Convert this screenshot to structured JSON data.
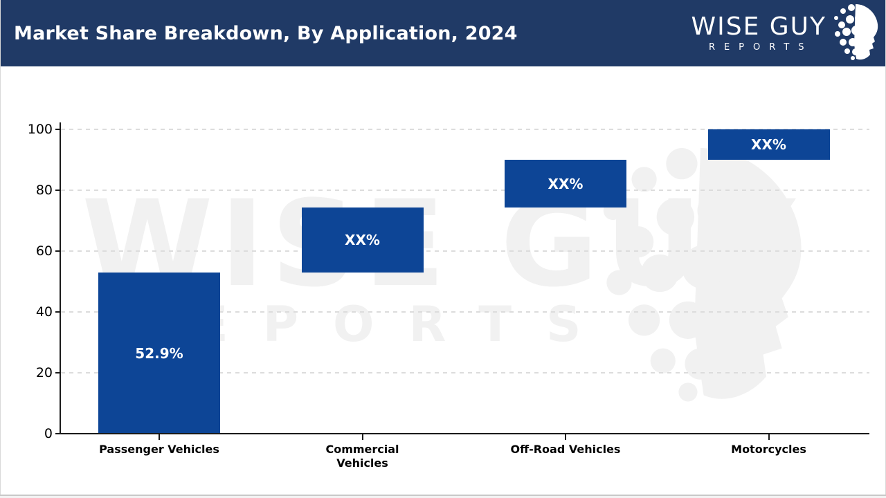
{
  "header": {
    "title": "Market Share Breakdown, By Application, 2024",
    "logo": {
      "line1": "WISE GUY",
      "line2": "REPORTS"
    }
  },
  "watermark": {
    "line1": "WISE GUY",
    "line2": "REPORTS"
  },
  "colors": {
    "header_bg": "#203a66",
    "bar": "#0d4596",
    "grid": "#dcdcdc",
    "axis": "#1a1a1a",
    "bar_label": "#ffffff",
    "watermark": "#f1f1f1"
  },
  "chart_data": {
    "type": "bar",
    "subtype": "waterfall",
    "title": "Market Share Breakdown, By Application, 2024",
    "xlabel": "",
    "ylabel": "",
    "ylim": [
      0,
      102
    ],
    "grid": "dashed horizontal",
    "legend": "none",
    "categories": [
      {
        "lines": [
          "Passenger Vehicles"
        ]
      },
      {
        "lines": [
          "Commercial",
          "Vehicles"
        ]
      },
      {
        "lines": [
          "Off-Road Vehicles"
        ]
      },
      {
        "lines": [
          "Motorcycles"
        ]
      }
    ],
    "yticks": [
      0,
      20,
      40,
      60,
      80,
      100
    ],
    "segments": [
      {
        "category": "Passenger Vehicles",
        "start": 0,
        "end": 52.9,
        "label": "52.9%"
      },
      {
        "category": "Commercial Vehicles",
        "start": 52.9,
        "end": 74.3,
        "label": "XX%"
      },
      {
        "category": "Off-Road Vehicles",
        "start": 74.3,
        "end": 90.0,
        "label": "XX%"
      },
      {
        "category": "Motorcycles",
        "start": 90.0,
        "end": 100.0,
        "label": "XX%"
      }
    ]
  }
}
